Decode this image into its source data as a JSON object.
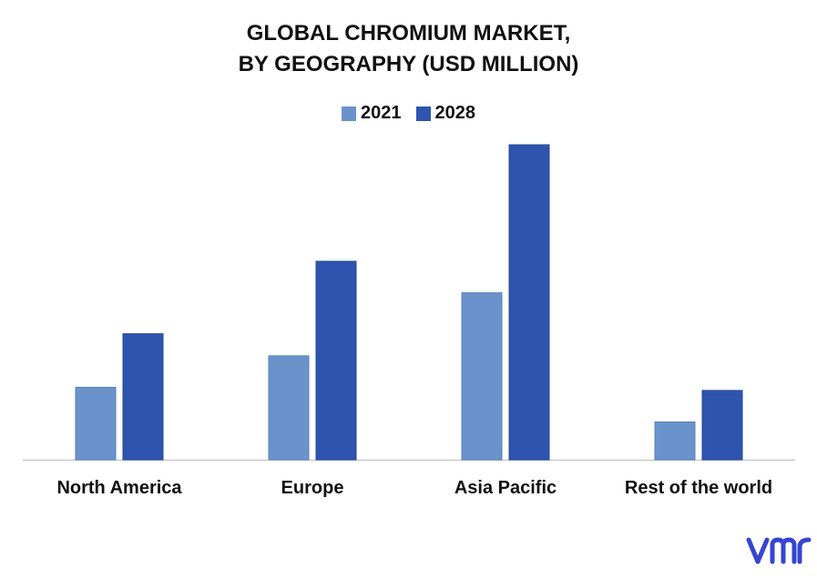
{
  "title": {
    "line1": "GLOBAL CHROMIUM MARKET,",
    "line2": "BY GEOGRAPHY (USD MILLION)"
  },
  "chart_data": {
    "type": "bar",
    "categories": [
      "North America",
      "Europe",
      "Asia Pacific",
      "Rest of the world"
    ],
    "series": [
      {
        "name": "2021",
        "color": "#6a93cb",
        "values": [
          23,
          33,
          53,
          12
        ]
      },
      {
        "name": "2028",
        "color": "#2e54ae",
        "values": [
          40,
          63,
          100,
          22
        ]
      }
    ],
    "ylim": [
      0,
      100
    ],
    "grid": false,
    "legend_position": "top-center"
  },
  "logo": {
    "name": "vmr-logo-icon",
    "color": "#3545d0"
  }
}
